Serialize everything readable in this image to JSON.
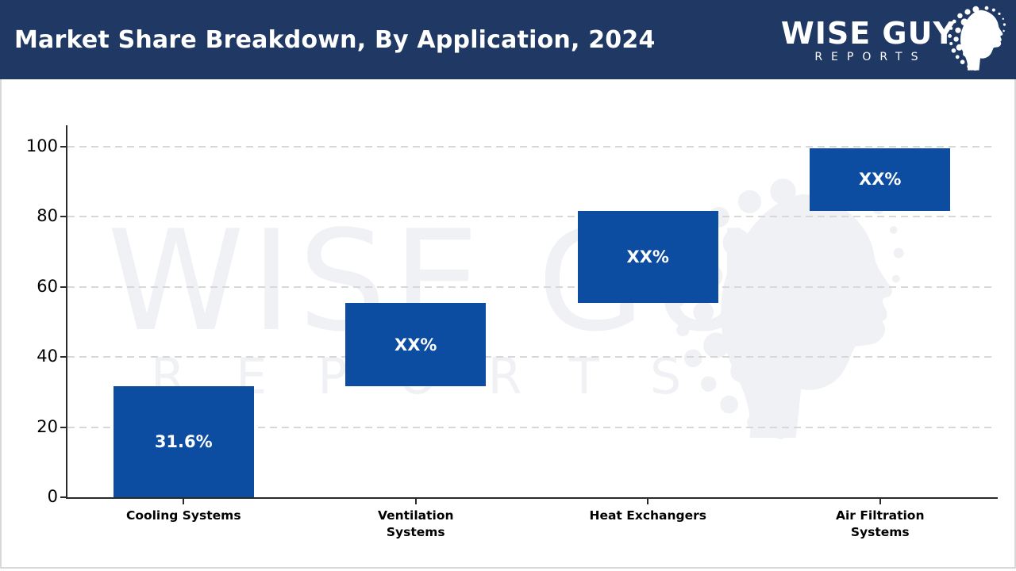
{
  "header": {
    "title": "Market Share Breakdown, By Application, 2024",
    "logo": {
      "brand": "WISE GUY",
      "sub": "REPORTS"
    },
    "bg_color": "#1f3864"
  },
  "watermark": {
    "brand": "WISE GUY",
    "sub": "REPORTS",
    "color": "#f0f1f4"
  },
  "chart_data": {
    "type": "bar",
    "subtype": "waterfall",
    "title": "Market Share Breakdown, By Application, 2024",
    "categories": [
      "Cooling Systems",
      "Ventilation Systems",
      "Heat Exchangers",
      "Air Filtration Systems"
    ],
    "category_lines": [
      [
        "Cooling Systems"
      ],
      [
        "Ventilation",
        "Systems"
      ],
      [
        "Heat Exchangers"
      ],
      [
        "Air Filtration",
        "Systems"
      ]
    ],
    "series": [
      {
        "name": "Market Share",
        "segments": [
          {
            "category": "Cooling Systems",
            "start": 0,
            "end": 31.6,
            "label": "31.6%"
          },
          {
            "category": "Ventilation Systems",
            "start": 31.6,
            "end": 55.4,
            "label": "XX%"
          },
          {
            "category": "Heat Exchangers",
            "start": 55.4,
            "end": 81.6,
            "label": "XX%"
          },
          {
            "category": "Air Filtration Systems",
            "start": 81.6,
            "end": 99.5,
            "label": "XX%"
          }
        ]
      }
    ],
    "xlabel": "",
    "ylabel": "",
    "ylim": [
      0,
      100
    ],
    "yticks": [
      0,
      20,
      40,
      60,
      80,
      100
    ],
    "grid": true,
    "grid_style": "dashed",
    "legend": false,
    "bar_color": "#0c4ca1",
    "bar_label_color": "#ffffff",
    "axis_color": "#2a2a2a",
    "grid_color": "#d8d8d8"
  }
}
